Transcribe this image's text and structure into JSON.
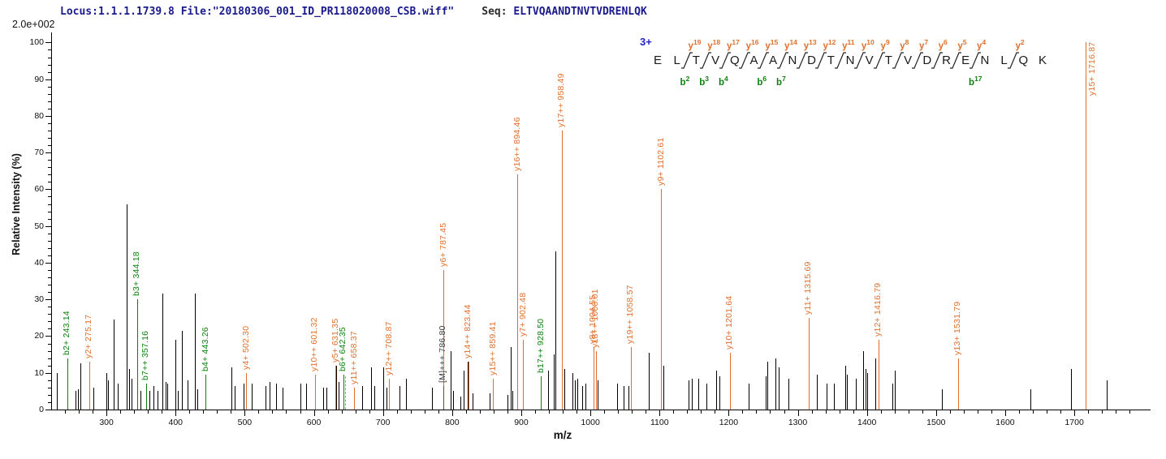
{
  "header": {
    "locus_file": "Locus:1.1.1.1739.8 File:\"20180306_001_ID_PR118020008_CSB.wiff\"",
    "seq_caption": "Seq:",
    "seq_value": "ELTVQAANDTNVTVDRENLQK"
  },
  "scale_label": "2.0e+002",
  "axes": {
    "y_title": "Relative  Intensity (%)",
    "x_title": "m/z",
    "y_ticks": [
      0,
      10,
      20,
      30,
      40,
      50,
      60,
      70,
      80,
      90,
      100
    ],
    "x_ticks": [
      300,
      400,
      500,
      600,
      700,
      800,
      900,
      1000,
      1100,
      1200,
      1300,
      1400,
      1500,
      1600,
      1700
    ],
    "x_minor_step": 20,
    "y_minor_step": 2,
    "x_range": [
      220,
      1810
    ],
    "y_range": [
      0,
      100
    ]
  },
  "colors": {
    "y_ion": "#E0702D",
    "b_ion": "#0C820C",
    "peak": "#000000",
    "precursor_line": "#6b4a33",
    "precursor_label": "#3f3f3f",
    "header_navy": "#1a1a8c",
    "charge_blue": "#2323cc",
    "dashed_peak": "#9a9a9a"
  },
  "ladder": {
    "charge": "3+",
    "residues": [
      "E",
      "L",
      "T",
      "V",
      "Q",
      "A",
      "A",
      "N",
      "D",
      "T",
      "N",
      "V",
      "T",
      "V",
      "D",
      "R",
      "E",
      "N",
      "L",
      "Q",
      "K"
    ],
    "cleavages": [
      {
        "gap": 2,
        "y": "y19",
        "b": "b2"
      },
      {
        "gap": 3,
        "y": "y18",
        "b": "b3"
      },
      {
        "gap": 4,
        "y": "y17",
        "b": "b4"
      },
      {
        "gap": 5,
        "y": "y16",
        "b": null
      },
      {
        "gap": 6,
        "y": "y15",
        "b": "b6"
      },
      {
        "gap": 7,
        "y": "y14",
        "b": "b7"
      },
      {
        "gap": 8,
        "y": "y13",
        "b": null
      },
      {
        "gap": 9,
        "y": "y12",
        "b": null
      },
      {
        "gap": 10,
        "y": "y11",
        "b": null
      },
      {
        "gap": 11,
        "y": "y10",
        "b": null
      },
      {
        "gap": 12,
        "y": "y9",
        "b": null
      },
      {
        "gap": 13,
        "y": "y8",
        "b": null
      },
      {
        "gap": 14,
        "y": "y7",
        "b": null
      },
      {
        "gap": 15,
        "y": "y6",
        "b": null
      },
      {
        "gap": 16,
        "y": "y5",
        "b": null
      },
      {
        "gap": 17,
        "y": "y4",
        "b": "b17"
      },
      {
        "gap": 19,
        "y": "y2",
        "b": null
      }
    ]
  },
  "chart_data": {
    "type": "bar",
    "kind": "ms2_fragment_spectrum",
    "xlabel": "m/z",
    "ylabel": "Relative  Intensity (%)",
    "xlim": [
      220,
      1810
    ],
    "ylim": [
      0,
      100
    ],
    "intensity_scale": "2.0e+002",
    "precursor": {
      "label": "[M]+++ 786.80",
      "mz": 786.8,
      "intensity": 6.5
    },
    "b_ions": [
      {
        "label": "b2+ 243.14",
        "mz": 243.14,
        "intensity": 14
      },
      {
        "label": "b3+ 344.18",
        "mz": 344.18,
        "intensity": 30
      },
      {
        "label": "b7++ 357.16",
        "mz": 357.16,
        "intensity": 7
      },
      {
        "label": "b4+ 443.26",
        "mz": 443.26,
        "intensity": 9.5
      },
      {
        "label": "b6+ 642.35",
        "mz": 642.35,
        "intensity": 9.5
      },
      {
        "label": "b17++ 928.50",
        "mz": 928.5,
        "intensity": 9
      }
    ],
    "y_ions": [
      {
        "label": "y2+ 275.17",
        "mz": 275.17,
        "intensity": 13
      },
      {
        "label": "y4+ 502.30",
        "mz": 502.3,
        "intensity": 10
      },
      {
        "label": "y10++ 601.32",
        "mz": 601.32,
        "intensity": 9.5
      },
      {
        "label": "y5+ 631.35",
        "mz": 631.35,
        "intensity": 12
      },
      {
        "label": "y11++ 658.37",
        "mz": 658.37,
        "intensity": 6
      },
      {
        "label": "y12++ 708.87",
        "mz": 708.87,
        "intensity": 8.5
      },
      {
        "label": "y6+ 787.45",
        "mz": 787.45,
        "intensity": 38
      },
      {
        "label": "y14++ 823.44",
        "mz": 823.44,
        "intensity": 13
      },
      {
        "label": "y15++ 859.41",
        "mz": 859.41,
        "intensity": 8.5
      },
      {
        "label": "y16++ 894.46",
        "mz": 894.46,
        "intensity": 64
      },
      {
        "label": "y7+ 902.48",
        "mz": 902.48,
        "intensity": 19
      },
      {
        "label": "y17++ 958.49",
        "mz": 958.49,
        "intensity": 76
      },
      {
        "label": "y8+ 1004.55",
        "mz": 1004.55,
        "intensity": 17
      },
      {
        "label": "y18++ 1008.01",
        "mz": 1008.01,
        "intensity": 16
      },
      {
        "label": "y19++ 1058.57",
        "mz": 1058.57,
        "intensity": 17
      },
      {
        "label": "y9+ 1102.61",
        "mz": 1102.61,
        "intensity": 60
      },
      {
        "label": "y10+ 1201.64",
        "mz": 1201.64,
        "intensity": 15.5
      },
      {
        "label": "y11+ 1315.69",
        "mz": 1315.69,
        "intensity": 25
      },
      {
        "label": "y12+ 1416.79",
        "mz": 1416.79,
        "intensity": 19
      },
      {
        "label": "y13+ 1531.79",
        "mz": 1531.79,
        "intensity": 14
      },
      {
        "label": "y15+ 1716.87",
        "mz": 1716.87,
        "intensity": 100,
        "label_pos": "beside"
      }
    ],
    "unassigned_dashed": {
      "mz": 645,
      "intensity": 9
    },
    "unlabeled_peaks": [
      [
        228,
        10
      ],
      [
        255,
        5
      ],
      [
        259,
        5.5
      ],
      [
        262,
        12.5
      ],
      [
        281,
        6
      ],
      [
        300,
        10
      ],
      [
        302,
        8
      ],
      [
        310.5,
        24.5
      ],
      [
        316,
        7
      ],
      [
        329,
        56
      ],
      [
        333,
        11
      ],
      [
        336,
        8.5
      ],
      [
        349,
        5
      ],
      [
        362,
        5
      ],
      [
        368,
        6.5
      ],
      [
        374,
        5
      ],
      [
        381,
        31.5
      ],
      [
        386,
        7.5
      ],
      [
        388.5,
        7
      ],
      [
        400,
        19
      ],
      [
        403,
        5
      ],
      [
        409,
        21.5
      ],
      [
        417,
        8
      ],
      [
        428,
        31.5
      ],
      [
        431,
        5.5
      ],
      [
        481,
        11.5
      ],
      [
        486,
        6.5
      ],
      [
        498,
        7
      ],
      [
        510,
        7
      ],
      [
        530,
        6.5
      ],
      [
        536,
        7.5
      ],
      [
        545,
        7
      ],
      [
        555,
        6
      ],
      [
        581,
        7
      ],
      [
        589,
        7
      ],
      [
        614,
        6
      ],
      [
        618,
        6
      ],
      [
        632.3,
        12
      ],
      [
        636,
        7.5
      ],
      [
        670,
        6.5
      ],
      [
        683,
        11.5
      ],
      [
        688,
        6.5
      ],
      [
        700,
        11.5
      ],
      [
        705,
        6
      ],
      [
        724,
        6.5
      ],
      [
        733,
        8.5
      ],
      [
        771,
        6
      ],
      [
        798,
        16
      ],
      [
        801,
        5
      ],
      [
        812,
        3.5
      ],
      [
        816.5,
        10.5
      ],
      [
        822.5,
        13
      ],
      [
        830,
        4.5
      ],
      [
        854,
        4.5
      ],
      [
        880,
        4
      ],
      [
        885,
        17
      ],
      [
        887.5,
        5
      ],
      [
        939,
        10.5
      ],
      [
        947,
        15
      ],
      [
        949,
        43
      ],
      [
        962,
        11
      ],
      [
        974,
        10
      ],
      [
        977,
        8
      ],
      [
        981,
        8.5
      ],
      [
        988,
        6.5
      ],
      [
        993,
        7
      ],
      [
        1011,
        8
      ],
      [
        1039,
        7
      ],
      [
        1048,
        6.5
      ],
      [
        1055,
        6.5
      ],
      [
        1085,
        15.5
      ],
      [
        1106,
        12
      ],
      [
        1142,
        8
      ],
      [
        1147,
        8.5
      ],
      [
        1156,
        8.5
      ],
      [
        1168,
        7
      ],
      [
        1182,
        10.5
      ],
      [
        1187,
        9
      ],
      [
        1229,
        7
      ],
      [
        1254,
        9
      ],
      [
        1256,
        13
      ],
      [
        1268,
        14
      ],
      [
        1272,
        11.5
      ],
      [
        1287,
        8.5
      ],
      [
        1328,
        9.5
      ],
      [
        1342,
        7
      ],
      [
        1352,
        7
      ],
      [
        1369,
        12
      ],
      [
        1371,
        9.5
      ],
      [
        1384,
        8.5
      ],
      [
        1395,
        16
      ],
      [
        1398,
        11
      ],
      [
        1400,
        10
      ],
      [
        1412,
        14
      ],
      [
        1437,
        7
      ],
      [
        1440,
        10.5
      ],
      [
        1509,
        5.5
      ],
      [
        1637,
        5.5
      ],
      [
        1695,
        11
      ],
      [
        1747,
        8
      ]
    ]
  }
}
